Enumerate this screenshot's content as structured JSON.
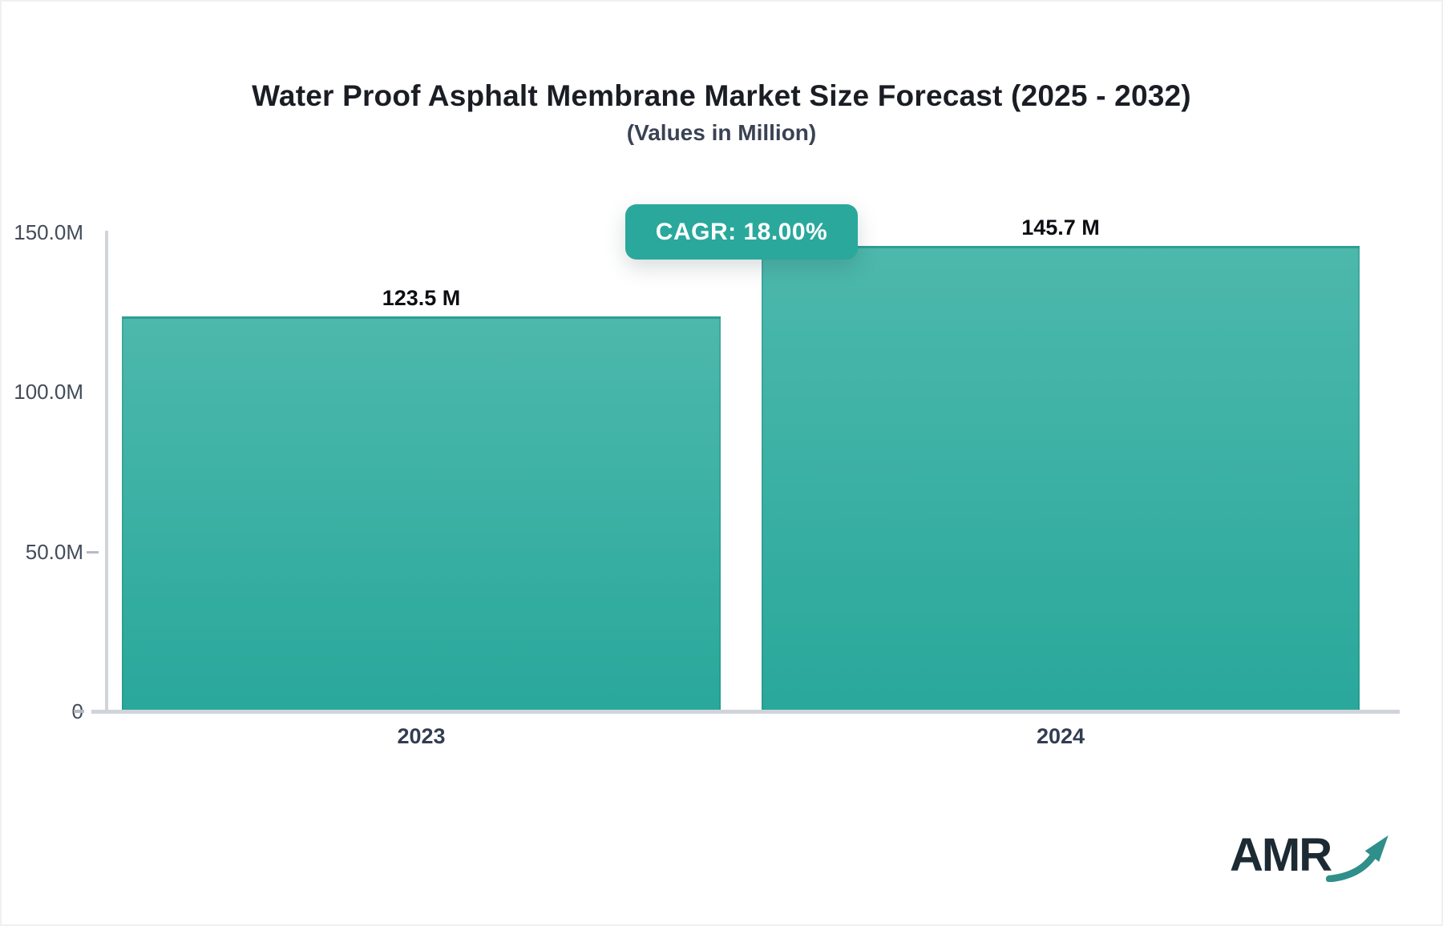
{
  "page": {
    "title": "Water Proof Asphalt Membrane Market Size Forecast (2025 - 2032)",
    "subtitle": "(Values in Million)"
  },
  "badge": {
    "label": "CAGR: 18.00%"
  },
  "brand": {
    "logo_text": "AMR",
    "arrow_icon": "growth-arrow-icon"
  },
  "colors": {
    "bar_top": "#4db8ac",
    "bar_bottom": "#29a89b",
    "bar_edge": "#2f9e94",
    "badge_bg": "#2aa89c",
    "badge_text": "#ffffff",
    "axis_line": "#d0d4da",
    "tick_text": "#434c5b",
    "title_text": "#1b1d24",
    "subtitle_text": "#3a4254",
    "value_text": "#0c0e12",
    "xlabel_text": "#333d51",
    "logo_text": "#1c2a33",
    "logo_arrow": "#2e8f8b"
  },
  "chart_data": {
    "type": "bar",
    "title": "Water Proof Asphalt Membrane Market Size Forecast (2025 - 2032)",
    "subtitle": "(Values in Million)",
    "categories": [
      "2023",
      "2024"
    ],
    "values": [
      123.5,
      145.7
    ],
    "value_labels": [
      "123.5 M",
      "145.7 M"
    ],
    "unit": "Million",
    "ylim": [
      0,
      150
    ],
    "y_tick_labels": [
      "150.0M",
      "100.0M",
      "50.0M",
      "0"
    ],
    "cagr_percent": "18.00",
    "grid": false,
    "legend": "none",
    "bar_color_gradient": [
      "#4db8ac",
      "#29a89b"
    ]
  }
}
